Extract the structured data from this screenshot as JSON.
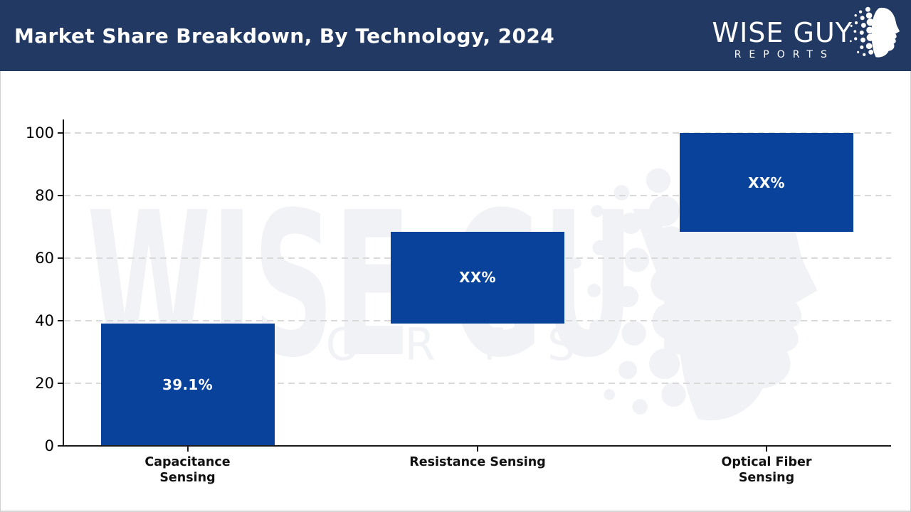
{
  "header": {
    "title": "Market Share Breakdown, By Technology, 2024",
    "logo": {
      "name": "WISE GUY",
      "sub": "REPORTS"
    }
  },
  "watermark": {
    "big": "WISE GUY",
    "sub": "REPORTS"
  },
  "colors": {
    "header_bg": "#223963",
    "bar": "#09429b",
    "grid": "#d9d9d9",
    "bar_label": "#ffffff",
    "watermark": "#f1f2f5"
  },
  "chart_data": {
    "type": "bar",
    "subtype": "waterfall",
    "title": "Market Share Breakdown, By Technology, 2024",
    "categories": [
      "Capacitance Sensing",
      "Resistance Sensing",
      "Optical Fiber Sensing"
    ],
    "category_label_lines": [
      [
        "Capacitance",
        "Sensing"
      ],
      [
        "Resistance Sensing"
      ],
      [
        "Optical Fiber",
        "Sensing"
      ]
    ],
    "segments": [
      {
        "category": "Capacitance Sensing",
        "start": 0,
        "end": 39.1,
        "label": "39.1%"
      },
      {
        "category": "Resistance Sensing",
        "start": 39.1,
        "end": 68.4,
        "label": "XX%"
      },
      {
        "category": "Optical Fiber Sensing",
        "start": 68.4,
        "end": 100,
        "label": "XX%"
      }
    ],
    "xlabel": "",
    "ylabel": "",
    "ylim": [
      0,
      100
    ],
    "yticks": [
      0,
      20,
      40,
      60,
      80,
      100
    ],
    "grid": "horizontal-dashed",
    "legend": null
  }
}
